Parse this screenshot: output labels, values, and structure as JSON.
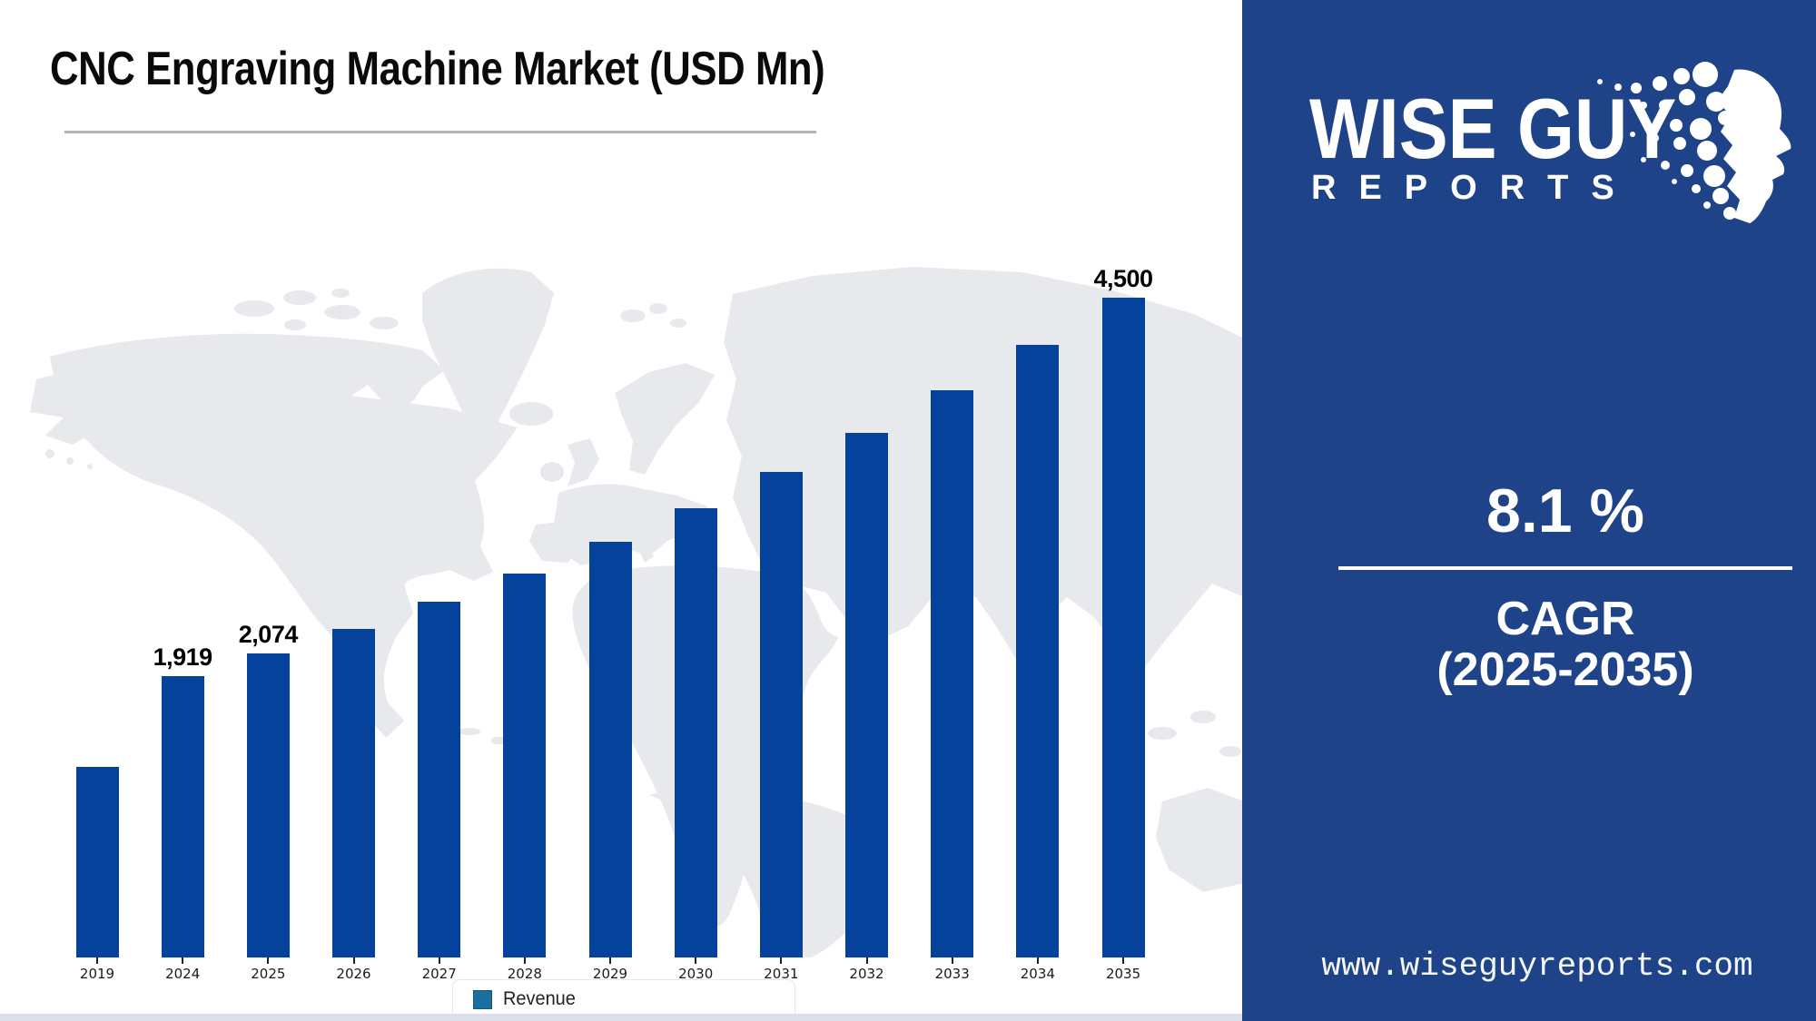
{
  "title": "CNC Engraving Machine Market (USD Mn)",
  "chart_data": {
    "type": "bar",
    "title": "CNC Engraving Machine Market (USD Mn)",
    "categories": [
      "2019",
      "2024",
      "2025",
      "2026",
      "2027",
      "2028",
      "2029",
      "2030",
      "2031",
      "2032",
      "2033",
      "2034",
      "2035"
    ],
    "values": [
      1300,
      1919,
      2074,
      2242,
      2424,
      2620,
      2832,
      3062,
      3310,
      3578,
      3868,
      4181,
      4500
    ],
    "labeled_points": {
      "2024": "1,919",
      "2025": "2,074",
      "2035": "4,500"
    },
    "series_name": "Revenue",
    "xlabel": "",
    "ylabel": "",
    "ylim": [
      0,
      4500
    ],
    "grid": false,
    "legend_position": "bottom",
    "bar_color": "#05429b",
    "note": "unlabeled bar values estimated from bar heights (~8.1% CAGR)"
  },
  "legend": {
    "items": [
      {
        "label": "Revenue",
        "swatch_color": "#19709f"
      }
    ]
  },
  "panel": {
    "logo": {
      "line1": "WISE GUY",
      "line2": "REPORTS"
    },
    "cagr_value": "8.1 %",
    "cagr_line1": "CAGR",
    "cagr_line2": "(2025-2035)",
    "website": "www.wiseguyreports.com",
    "background": "#1f4389"
  },
  "colors": {
    "bar": "#05429b",
    "panel_background": "#1f4389",
    "legend_swatch": "#19709f",
    "map": "#e8e9ec",
    "bottom_strip": "#d9e0ea",
    "title_text": "#0a0a0a",
    "underline": "#b3b3b6"
  }
}
